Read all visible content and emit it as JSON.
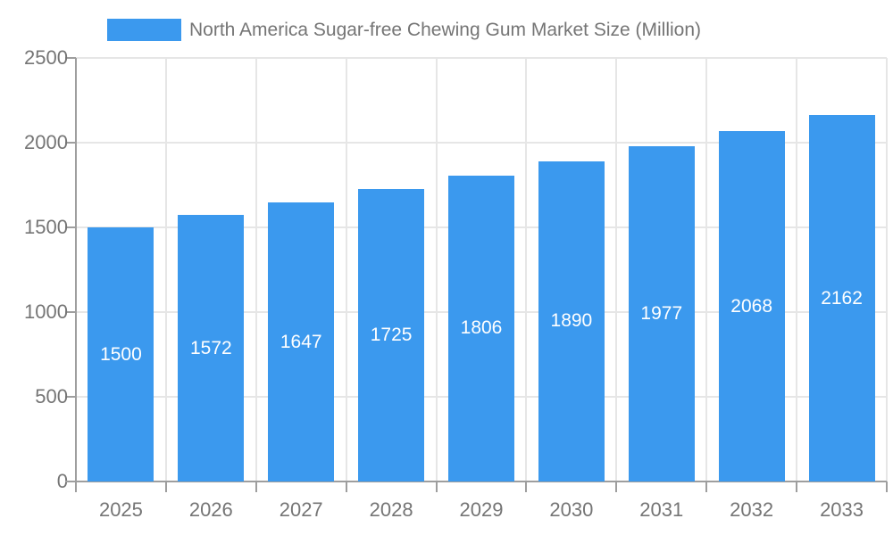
{
  "chart_data": {
    "type": "bar",
    "title": "North America Sugar-free Chewing Gum Market Size (Million)",
    "categories": [
      "2025",
      "2026",
      "2027",
      "2028",
      "2029",
      "2030",
      "2031",
      "2032",
      "2033"
    ],
    "values": [
      1500,
      1572,
      1647,
      1725,
      1806,
      1890,
      1977,
      2068,
      2162
    ],
    "series": [
      {
        "name": "North America Sugar-free Chewing Gum Market Size (Million)",
        "values": [
          1500,
          1572,
          1647,
          1725,
          1806,
          1890,
          1977,
          2068,
          2162
        ]
      }
    ],
    "xlabel": "",
    "ylabel": "",
    "ylim": [
      0,
      2500
    ],
    "yticks": [
      0,
      500,
      1000,
      1500,
      2000,
      2500
    ],
    "grid": true,
    "legend_position": "top-left",
    "bar_labels_visible": true,
    "bar_label_position": "center"
  },
  "colors": {
    "bar": "#3B99EE",
    "text": "#757575",
    "bar_label_text": "#FFFFFF",
    "gridline": "#E6E6E6",
    "axis_line": "#9E9E9E",
    "background": "#FFFFFF"
  }
}
